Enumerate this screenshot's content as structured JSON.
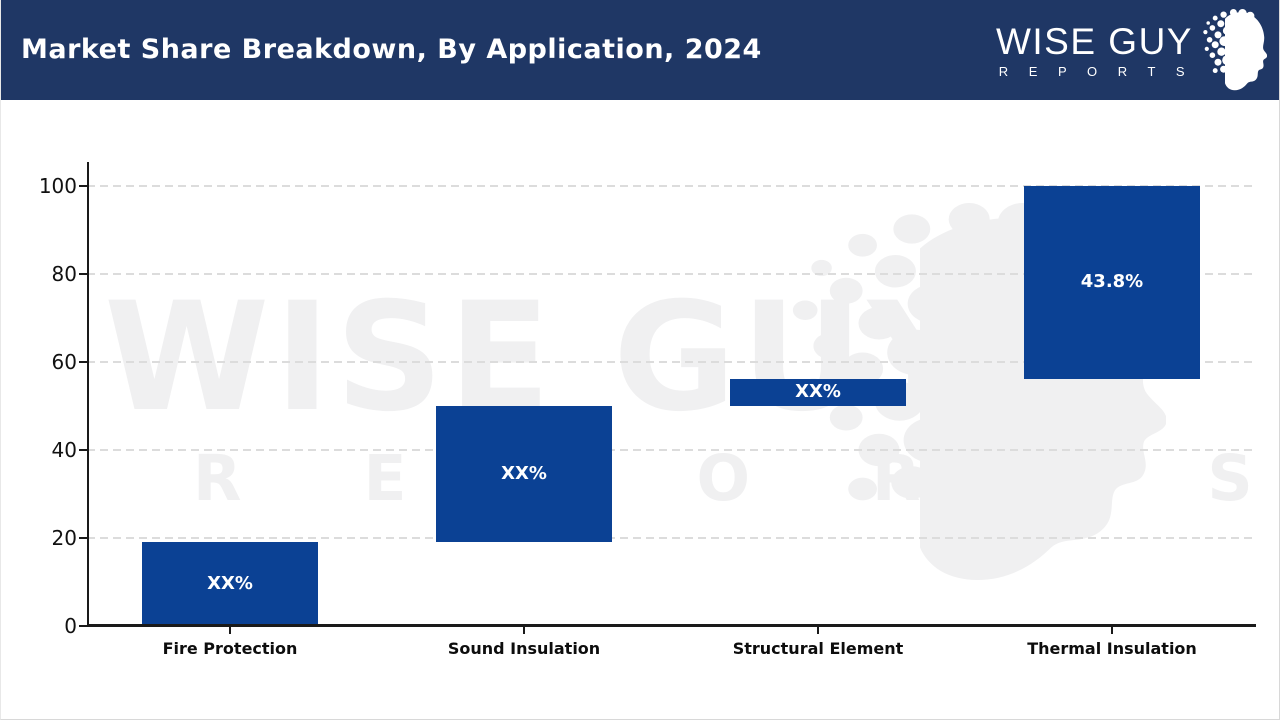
{
  "header": {
    "title": "Market Share Breakdown, By Application, 2024",
    "logo": {
      "line1": "WISE GUY",
      "line2": "R E P O R T S"
    }
  },
  "watermark": {
    "line1": "WISE GUY",
    "line2": "R E P O R T S"
  },
  "colors": {
    "header_bg": "#1f3765",
    "bar_blue": "#0b4194",
    "gridline": "#dcdcdc",
    "watermark": "#f0f0f1"
  },
  "chart_data": {
    "type": "bar",
    "subtype": "floating-waterfall",
    "title": "Market Share Breakdown, By Application, 2024",
    "categories": [
      "Fire Protection",
      "Sound Insulation",
      "Structural Element",
      "Thermal Insulation"
    ],
    "bars": [
      {
        "category": "Fire Protection",
        "from": 0,
        "to": 19,
        "size": 19,
        "label": "XX%"
      },
      {
        "category": "Sound Insulation",
        "from": 19,
        "to": 50,
        "size": 31,
        "label": "XX%"
      },
      {
        "category": "Structural Element",
        "from": 50,
        "to": 56.2,
        "size": 6.2,
        "label": "XX%"
      },
      {
        "category": "Thermal Insulation",
        "from": 56.2,
        "to": 100,
        "size": 43.8,
        "label": "43.8%"
      }
    ],
    "xlabel": "",
    "ylabel": "",
    "ylim": [
      0,
      105
    ],
    "yticks": [
      0,
      20,
      40,
      60,
      80,
      100
    ],
    "grid": "horizontal-dashed",
    "legend": "none",
    "bar_color": "#0b4194"
  }
}
